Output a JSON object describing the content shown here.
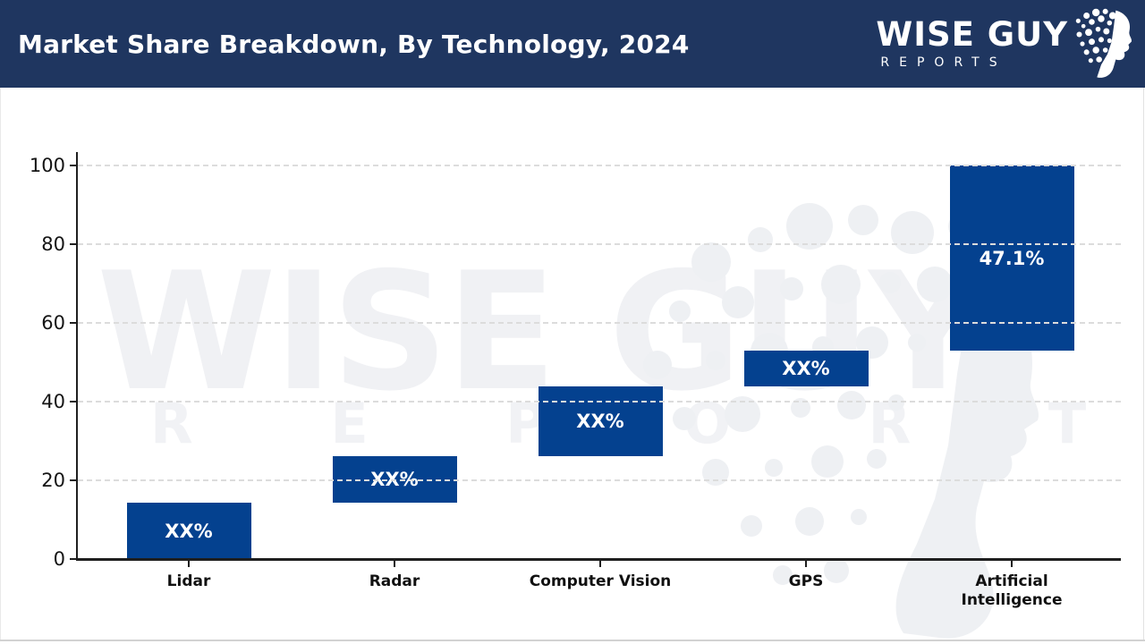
{
  "header": {
    "title": "Market Share Breakdown, By Technology, 2024",
    "logo": {
      "line1": "WISE GUY",
      "line2": "REPORTS"
    }
  },
  "watermark": {
    "line1": "WISE GUY",
    "line2": "R E P O R T S"
  },
  "chart_data": {
    "type": "bar",
    "subtype": "waterfall",
    "title": "Market Share Breakdown, By Technology, 2024",
    "categories": [
      "Lidar",
      "Radar",
      "Computer Vision",
      "GPS",
      "Artificial\nIntelligence"
    ],
    "segments": [
      {
        "category": "Lidar",
        "start": 0,
        "end": 14.3,
        "label": "XX%"
      },
      {
        "category": "Radar",
        "start": 14.3,
        "end": 26.1,
        "label": "XX%"
      },
      {
        "category": "Computer Vision",
        "start": 26.1,
        "end": 43.9,
        "label": "XX%"
      },
      {
        "category": "GPS",
        "start": 43.9,
        "end": 52.9,
        "label": "XX%"
      },
      {
        "category": "Artificial Intelligence",
        "start": 52.9,
        "end": 100,
        "label": "47.1%"
      }
    ],
    "yticks": [
      0,
      20,
      40,
      60,
      80,
      100
    ],
    "ylim": [
      0,
      105
    ],
    "xlabel": "",
    "ylabel": "",
    "grid": "horizontal-dashed",
    "legend": "none",
    "bar_color": "#04418f",
    "bar_label_color": "#ffffff",
    "axis_color": "#1f1f1f",
    "header_color": "#1f3660"
  }
}
